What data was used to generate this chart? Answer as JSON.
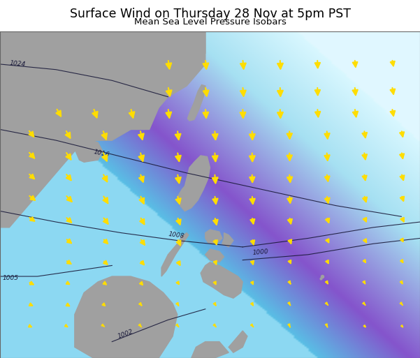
{
  "title": "Surface Wind on Thursday 28 Nov at 5pm PST",
  "subtitle": "Mean Sea Level Pressure Isobars",
  "title_fontsize": 12.5,
  "subtitle_fontsize": 9.5,
  "fig_width": 6.01,
  "fig_height": 5.13,
  "dpi": 100,
  "background_color": "#ffffff",
  "arrow_color": "#ffdd00",
  "isobar_color": "#1a1a3a",
  "land_color": "#a0a0a0",
  "ocean_base": "#c8f0f8",
  "purple_color": "#8855cc",
  "blue_color": "#5599dd",
  "cyan_color": "#55ccdd",
  "light_cyan": "#aae8f0"
}
